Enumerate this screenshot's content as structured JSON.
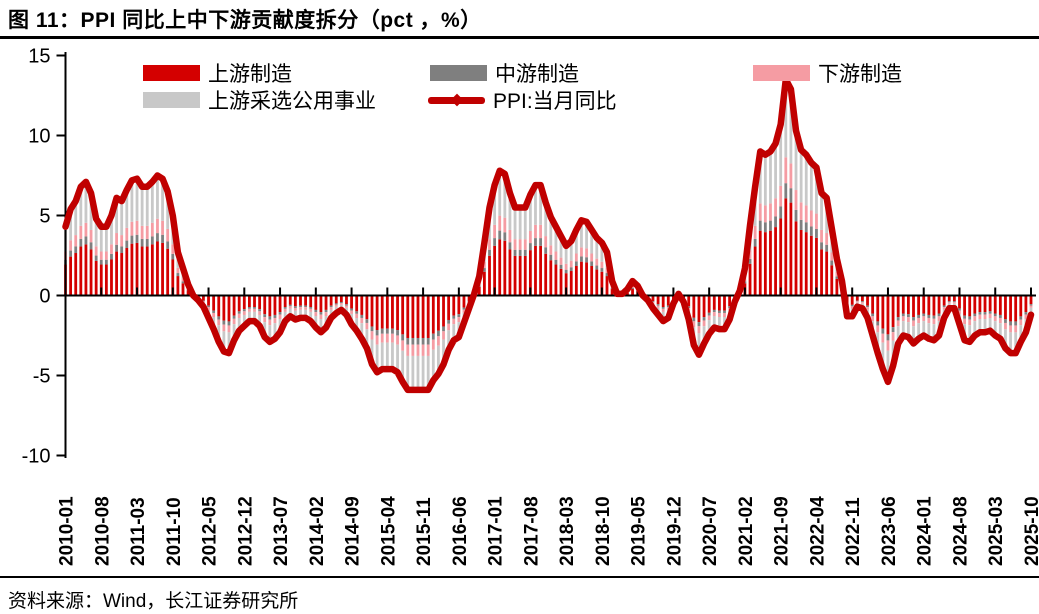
{
  "title": "图  11：PPI 同比上中下游贡献度拆分（pct ，%）",
  "source": "资料来源：Wind，长江证券研究所",
  "legend": [
    {
      "label": "上游制造",
      "color": "#d40000",
      "type": "bar"
    },
    {
      "label": "中游制造",
      "color": "#7f7f7f",
      "type": "bar"
    },
    {
      "label": "下游制造",
      "color": "#f59ca3",
      "type": "bar"
    },
    {
      "label": "上游采选公用事业",
      "color": "#c8c8c8",
      "type": "bar"
    },
    {
      "label": "PPI:当月同比",
      "color": "#c00000",
      "type": "line"
    }
  ],
  "chart_data": {
    "type": "bar",
    "subtype": "stacked-monthly-contribution-with-line",
    "start_month": "2010-01",
    "end_month": "2025-10",
    "x_tick_interval_months": 7,
    "x_tick_labels": [
      "2010-01",
      "2010-08",
      "2011-03",
      "2011-10",
      "2012-05",
      "2012-12",
      "2013-07",
      "2014-02",
      "2014-09",
      "2015-04",
      "2015-11",
      "2016-06",
      "2017-01",
      "2017-08",
      "2018-03",
      "2018-10",
      "2019-05",
      "2019-12",
      "2020-07",
      "2021-02",
      "2021-09",
      "2022-04",
      "2022-11",
      "2023-06",
      "2024-01",
      "2024-08",
      "2025-03",
      "2025-10"
    ],
    "ylim": [
      -10,
      15
    ],
    "y_ticks": [
      15,
      10,
      5,
      0,
      -5,
      -10
    ],
    "grid": false,
    "legend_position": "top-inside",
    "line_series": {
      "name": "PPI:当月同比",
      "color": "#c00000",
      "values": [
        4.3,
        5.4,
        5.9,
        6.8,
        7.1,
        6.4,
        4.8,
        4.3,
        4.3,
        5.0,
        6.1,
        5.9,
        6.6,
        7.2,
        7.3,
        6.8,
        6.8,
        7.1,
        7.5,
        7.3,
        6.5,
        5.0,
        2.7,
        1.7,
        0.7,
        0.0,
        -0.3,
        -0.7,
        -1.4,
        -2.1,
        -2.9,
        -3.5,
        -3.6,
        -2.8,
        -2.2,
        -1.9,
        -1.6,
        -1.6,
        -1.9,
        -2.6,
        -2.9,
        -2.7,
        -2.3,
        -1.6,
        -1.3,
        -1.5,
        -1.4,
        -1.4,
        -1.6,
        -2.0,
        -2.3,
        -2.0,
        -1.4,
        -1.1,
        -0.9,
        -1.2,
        -1.8,
        -2.2,
        -2.7,
        -3.3,
        -4.3,
        -4.8,
        -4.6,
        -4.6,
        -4.6,
        -4.8,
        -5.4,
        -5.9,
        -5.9,
        -5.9,
        -5.9,
        -5.9,
        -5.3,
        -4.9,
        -4.3,
        -3.4,
        -2.8,
        -2.6,
        -1.7,
        -0.8,
        0.1,
        1.2,
        3.3,
        5.5,
        6.9,
        7.8,
        7.6,
        6.4,
        5.5,
        5.5,
        5.5,
        6.3,
        6.9,
        6.9,
        5.8,
        4.9,
        4.3,
        3.7,
        3.1,
        3.4,
        4.1,
        4.7,
        4.6,
        4.1,
        3.6,
        3.3,
        2.7,
        0.9,
        0.1,
        0.1,
        0.4,
        0.9,
        0.6,
        0.0,
        -0.3,
        -0.8,
        -1.2,
        -1.6,
        -1.4,
        -0.5,
        0.1,
        -0.4,
        -1.5,
        -3.1,
        -3.7,
        -3.0,
        -2.4,
        -2.0,
        -2.1,
        -2.1,
        -1.5,
        -0.4,
        0.3,
        1.7,
        4.4,
        6.8,
        9.0,
        8.8,
        9.0,
        9.5,
        10.7,
        13.5,
        12.9,
        10.3,
        9.1,
        8.8,
        8.3,
        8.0,
        6.4,
        6.1,
        4.2,
        2.3,
        0.9,
        -1.3,
        -1.3,
        -0.7,
        -0.8,
        -1.4,
        -2.5,
        -3.6,
        -4.6,
        -5.4,
        -4.4,
        -3.0,
        -2.5,
        -2.6,
        -3.0,
        -2.7,
        -2.5,
        -2.7,
        -2.8,
        -2.5,
        -1.4,
        -0.8,
        -0.8,
        -1.8,
        -2.8,
        -2.9,
        -2.5,
        -2.3,
        -2.3,
        -2.2,
        -2.5,
        -2.7,
        -3.3,
        -3.6,
        -3.6,
        -2.9,
        -2.3,
        -1.2
      ]
    },
    "stacked_components": [
      {
        "name": "上游制造",
        "color": "#d40000",
        "approx_share": 0.45
      },
      {
        "name": "中游制造",
        "color": "#7f7f7f",
        "approx_share": 0.07
      },
      {
        "name": "下游制造",
        "color": "#f59ca3",
        "approx_share": 0.12
      },
      {
        "name": "上游采选公用事业",
        "color": "#c8c8c8",
        "approx_share": 0.36
      }
    ]
  }
}
